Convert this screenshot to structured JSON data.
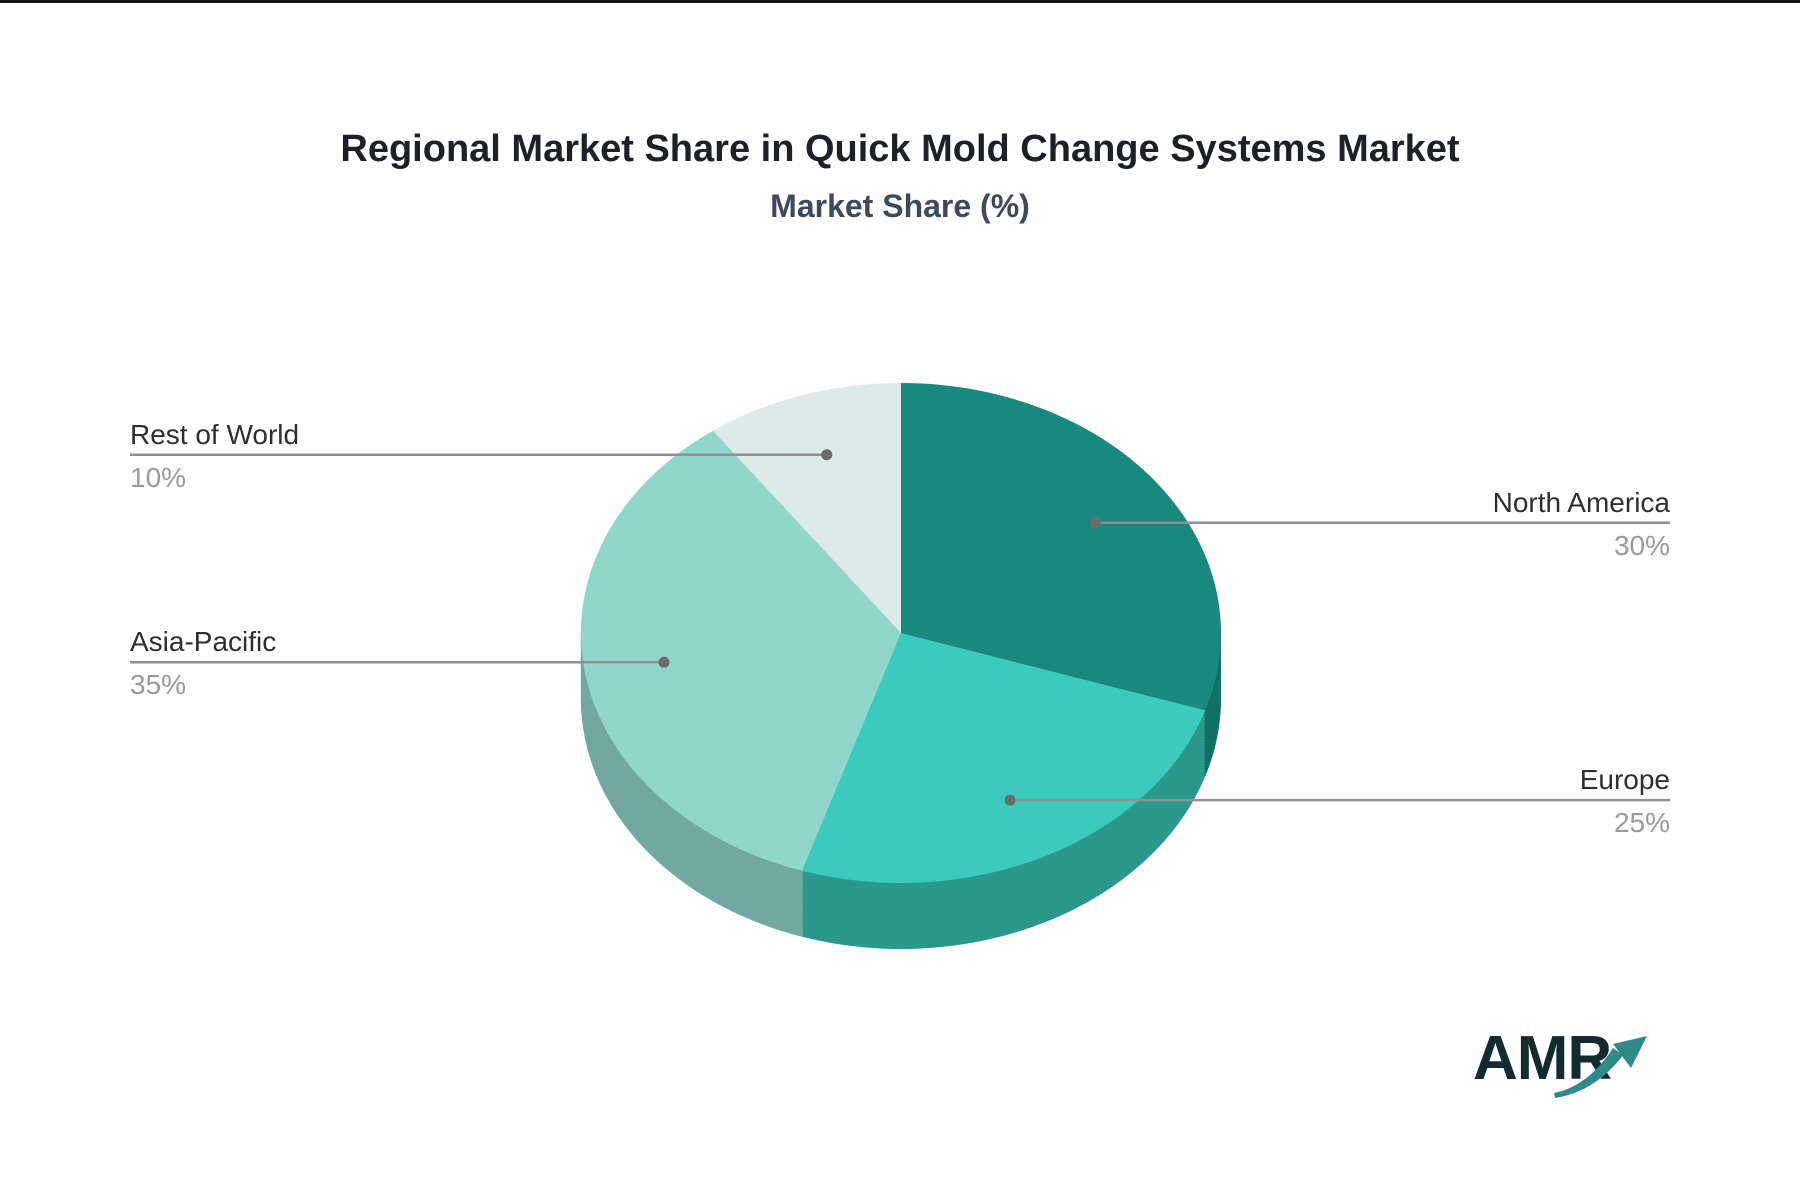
{
  "page": {
    "title": "Regional Market Share in Quick Mold Change Systems Market",
    "subtitle": "Market Share (%)",
    "title_color": "#1d2127",
    "subtitle_color": "#3d4a5c"
  },
  "logo": {
    "text": "AMR",
    "text_color": "#142a31",
    "arrow_color": "#2e8b8a"
  },
  "chart_data": {
    "type": "pie",
    "title": "Regional Market Share in Quick Mold Change Systems Market",
    "subtitle": "Market Share (%)",
    "unit": "%",
    "style": "3d-pie",
    "start_angle_deg": 0,
    "direction": "clockwise",
    "slices": [
      {
        "label": "North America",
        "value": 30,
        "pct_text": "30%",
        "color": "#17897F",
        "side_color": "#0F7167",
        "label_side": "right"
      },
      {
        "label": "Europe",
        "value": 25,
        "pct_text": "25%",
        "color": "#3CCABD",
        "side_color": "#2A988D",
        "label_side": "right"
      },
      {
        "label": "Asia-Pacific",
        "value": 35,
        "pct_text": "35%",
        "color": "#90D6CB",
        "side_color": "#73A8A0",
        "label_side": "left"
      },
      {
        "label": "Rest of World",
        "value": 10,
        "pct_text": "10%",
        "color": "#DCEBE8",
        "side_color": "#B9CFCA",
        "label_side": "left"
      }
    ],
    "colors": {
      "leader_line": "#919191",
      "dot": "#6b6b6b",
      "label_text": "#2e2e2e",
      "pct_text": "#9a9a9a"
    }
  }
}
